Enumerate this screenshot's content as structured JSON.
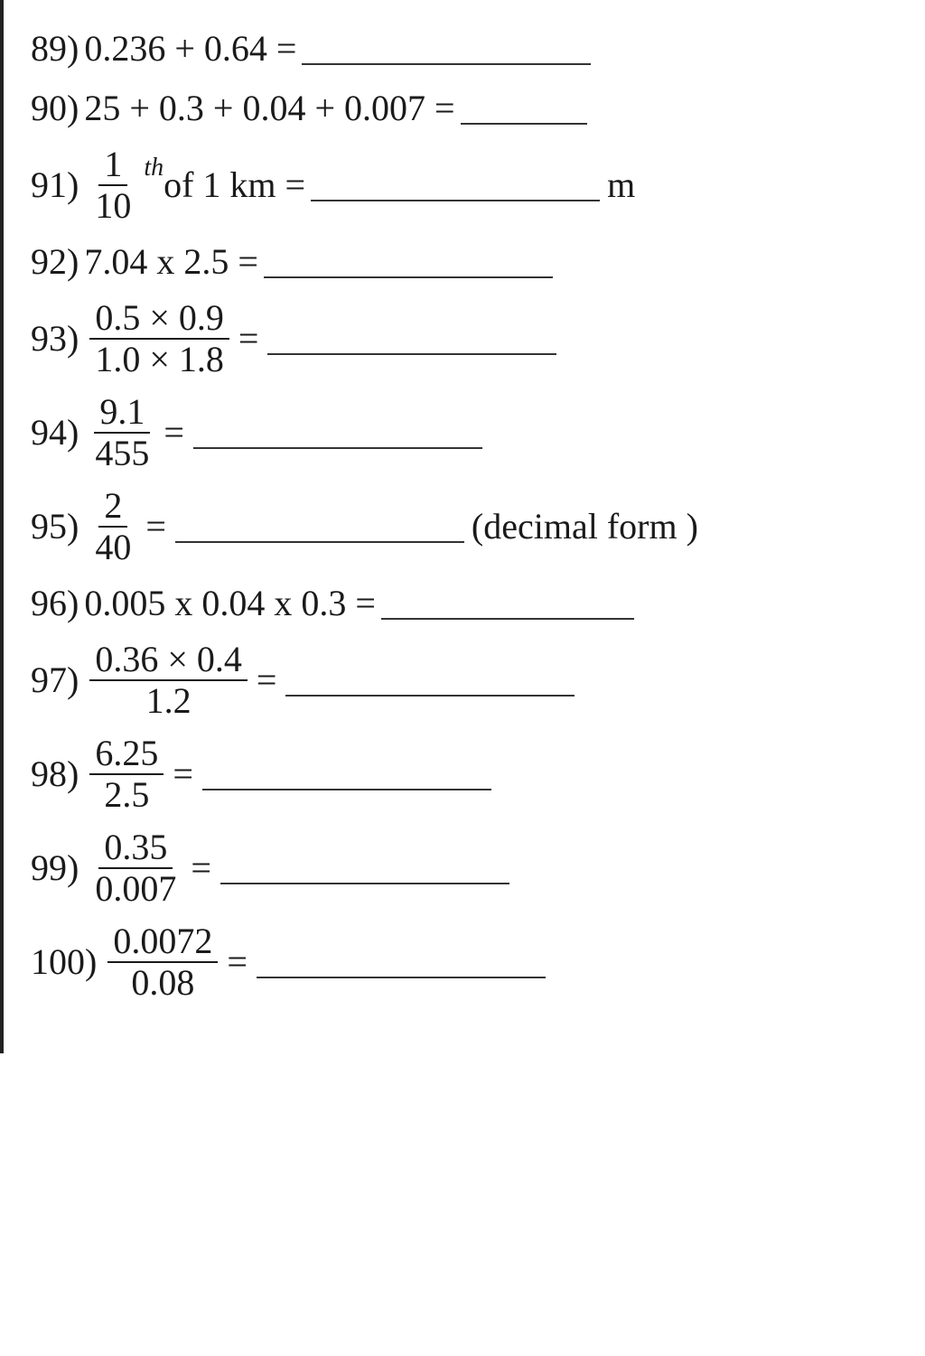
{
  "blank": {
    "std": 320,
    "short": 280,
    "long": 360,
    "xlong": 140
  },
  "q": {
    "n89": {
      "num": "89)",
      "expr": "0.236 + 0.64 ="
    },
    "n90": {
      "num": "90)",
      "expr": "25 + 0.3 + 0.04 + 0.007 ="
    },
    "n91": {
      "num": "91)",
      "frac_num": "1",
      "frac_den": "10",
      "sup": "th",
      "mid": " of 1 km =",
      "unit": "m"
    },
    "n92": {
      "num": "92)",
      "expr": "7.04 x 2.5 ="
    },
    "n93": {
      "num": "93)",
      "frac_num": "0.5 × 0.9",
      "frac_den": "1.0 × 1.8",
      "eq": "="
    },
    "n94": {
      "num": "94)",
      "frac_num": "9.1",
      "frac_den": "455",
      "eq": "="
    },
    "n95": {
      "num": "95)",
      "frac_num": "2",
      "frac_den": "40",
      "eq": "=",
      "note": "(decimal form )"
    },
    "n96": {
      "num": "96)",
      "expr": "0.005 x 0.04 x 0.3 ="
    },
    "n97": {
      "num": "97)",
      "frac_num": "0.36 × 0.4",
      "frac_den": "1.2",
      "eq": "="
    },
    "n98": {
      "num": "98)",
      "frac_num": "6.25",
      "frac_den": "2.5",
      "eq": "="
    },
    "n99": {
      "num": "99)",
      "frac_num": "0.35",
      "frac_den": "0.007",
      "eq": "="
    },
    "n100": {
      "num": "100)",
      "frac_num": "0.0072",
      "frac_den": "0.08",
      "eq": "="
    }
  }
}
